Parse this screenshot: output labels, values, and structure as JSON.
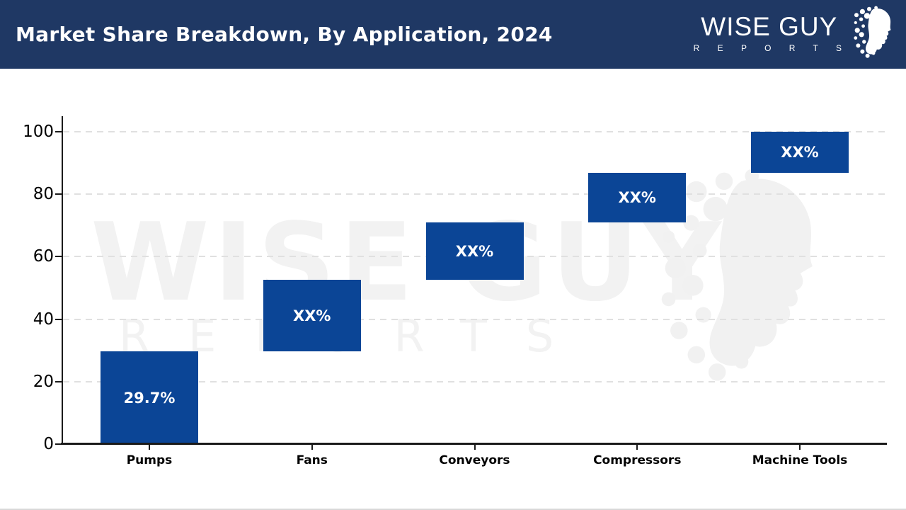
{
  "header": {
    "title": "Market Share Breakdown, By Application, 2024",
    "brand": {
      "line1": "WISE GUY",
      "line2": "R E P O R T S"
    }
  },
  "watermark": {
    "line1": "WISE GUY",
    "line2": "REPORTS"
  },
  "colors": {
    "header_bg": "#1f3864",
    "bar": "#0b4596",
    "bar_label": "#ffffff",
    "axis": "#1a1a1a",
    "gridline": "#e0e0e0",
    "watermark": "#f2f2f2"
  },
  "chart_data": {
    "type": "bar",
    "subtype": "waterfall",
    "title": "Market Share Breakdown, By Application, 2024",
    "categories": [
      "Pumps",
      "Fans",
      "Conveyors",
      "Compressors",
      "Machine Tools"
    ],
    "segments": [
      {
        "category": "Pumps",
        "start": 0,
        "end": 29.7,
        "label": "29.7%"
      },
      {
        "category": "Fans",
        "start": 29.7,
        "end": 52.5,
        "label": "XX%"
      },
      {
        "category": "Conveyors",
        "start": 52.5,
        "end": 71.0,
        "label": "XX%"
      },
      {
        "category": "Compressors",
        "start": 71.0,
        "end": 86.8,
        "label": "XX%"
      },
      {
        "category": "Machine Tools",
        "start": 86.8,
        "end": 100,
        "label": "XX%"
      }
    ],
    "xlabel": "",
    "ylabel": "",
    "yticks": [
      0,
      20,
      40,
      60,
      80,
      100
    ],
    "ylim": [
      0,
      105
    ],
    "grid": "horizontal-dashed",
    "legend": false
  }
}
